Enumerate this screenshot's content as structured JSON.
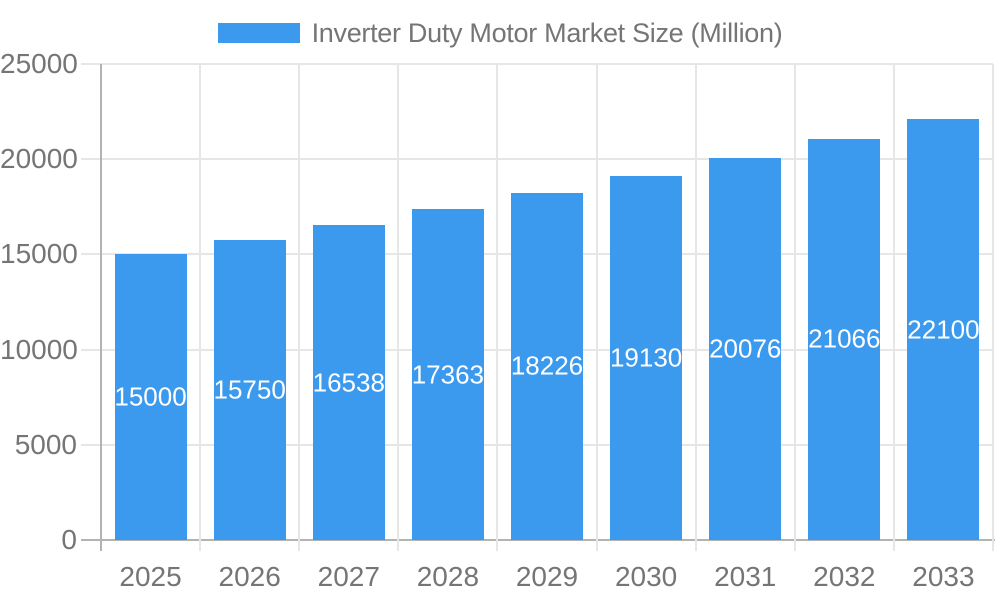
{
  "legend": {
    "label": "Inverter Duty Motor Market Size (Million)"
  },
  "chart_data": {
    "type": "bar",
    "title": "Inverter Duty Motor Market Size (Million)",
    "series_name": "Inverter Duty Motor Market Size (Million)",
    "categories": [
      "2025",
      "2026",
      "2027",
      "2028",
      "2029",
      "2030",
      "2031",
      "2032",
      "2033"
    ],
    "values": [
      15000,
      15750,
      16538,
      17363,
      18226,
      19130,
      20076,
      21066,
      22100
    ],
    "bar_value_labels": [
      "15000",
      "15750",
      "16538",
      "17363",
      "18226",
      "19130",
      "20076",
      "21066",
      "22100"
    ],
    "y_tick_labels": [
      "0",
      "5000",
      "10000",
      "15000",
      "20000",
      "25000"
    ],
    "y_ticks": [
      0,
      5000,
      10000,
      15000,
      20000,
      25000
    ],
    "ylim": [
      0,
      25000
    ],
    "xlabel": "",
    "ylabel": "",
    "grid": true,
    "legend_position": "top",
    "colors": {
      "bar": "#3B99EE",
      "bar_value_text": "#FFFFFF",
      "axis_text": "#757575",
      "legend_text": "#757575",
      "grid_line": "#E6E6E6",
      "axis_line": "#B3B3B3",
      "background": "#FFFFFF"
    }
  }
}
